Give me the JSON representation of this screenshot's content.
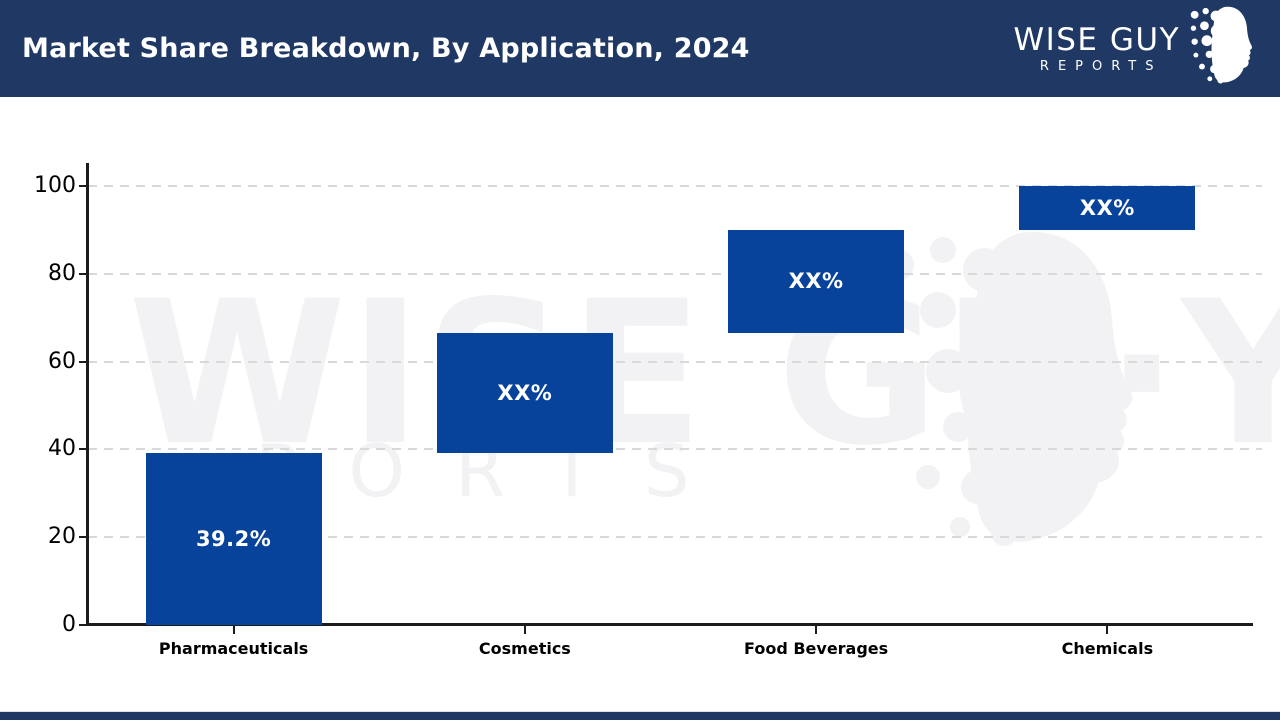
{
  "header": {
    "title": "Market Share Breakdown, By Application, 2024",
    "logo": {
      "line1": "WISE GUY",
      "line2": "REPORTS"
    }
  },
  "watermark": {
    "line1": "WISE GU·Y",
    "line2": "PORTS"
  },
  "chart_data": {
    "type": "bar",
    "subtype": "waterfall",
    "title": "Market Share Breakdown, By Application, 2024",
    "categories": [
      "Pharmaceuticals",
      "Cosmetics",
      "Food Beverages",
      "Chemicals"
    ],
    "segments": [
      {
        "category": "Pharmaceuticals",
        "start": 0,
        "end": 39.2,
        "label": "39.2%"
      },
      {
        "category": "Cosmetics",
        "start": 39.2,
        "end": 66.6,
        "label": "XX%"
      },
      {
        "category": "Food Beverages",
        "start": 66.6,
        "end": 89.9,
        "label": "XX%"
      },
      {
        "category": "Chemicals",
        "start": 89.9,
        "end": 100,
        "label": "XX%"
      }
    ],
    "values_shown": [
      "39.2%",
      "XX%",
      "XX%",
      "XX%"
    ],
    "yticks": [
      0,
      20,
      40,
      60,
      80,
      100
    ],
    "ylim": [
      0,
      105
    ],
    "xlabel": "",
    "ylabel": "",
    "legend": "none",
    "grid": "horizontal-dashed",
    "bar_color": "#08439b",
    "bar_label_color": "#ffffff",
    "grid_color": "#d9d9d9",
    "header_color": "#1f3864"
  }
}
